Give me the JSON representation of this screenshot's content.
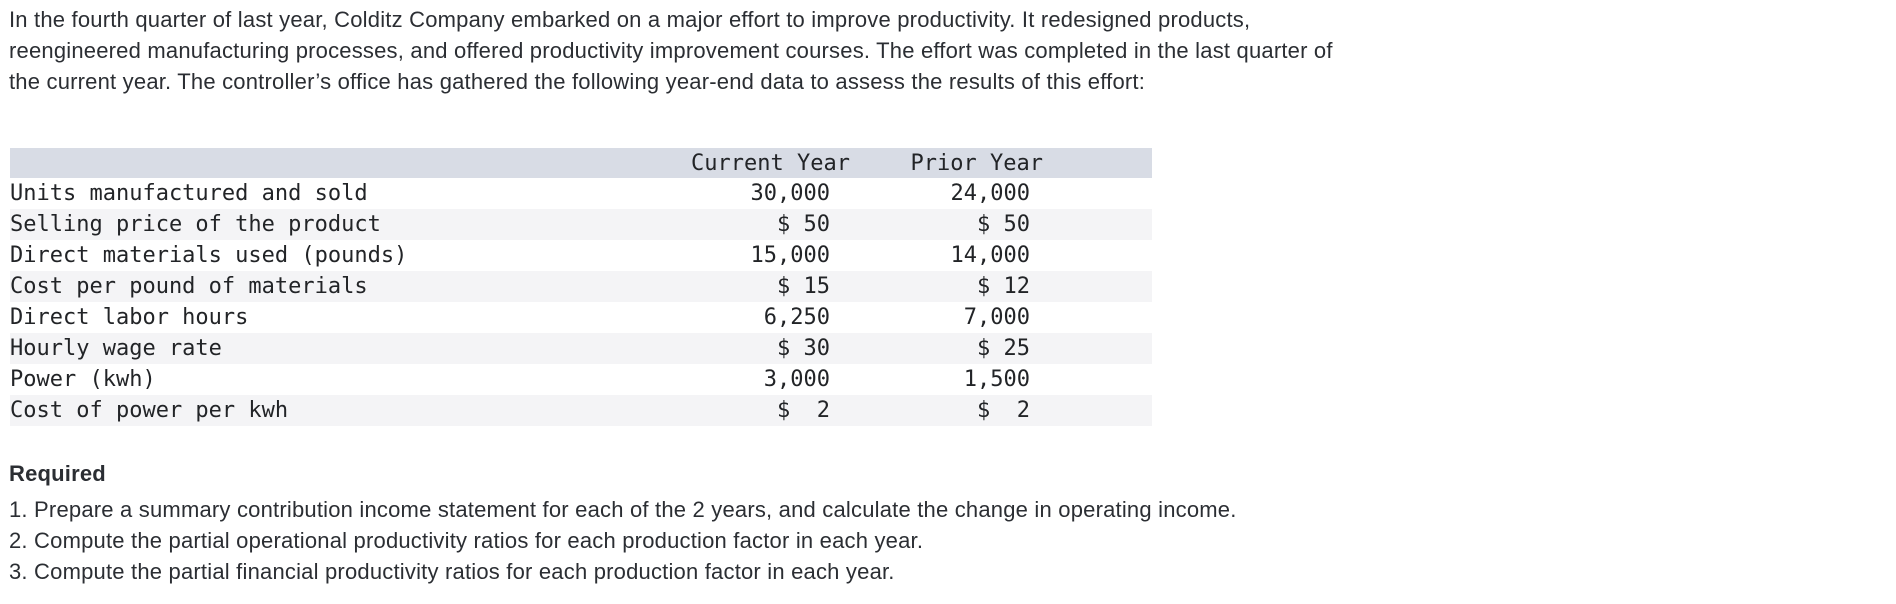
{
  "intro": {
    "lines": [
      "In the fourth quarter of last year, Colditz Company embarked on a major effort to improve productivity. It redesigned products,",
      "reengineered manufacturing processes, and offered productivity improvement courses. The effort was completed in the last quarter of",
      "the current year. The controller’s office has gathered the following year-end data to assess the results of this effort:"
    ]
  },
  "table": {
    "headers": {
      "label": "",
      "current": "Current Year",
      "prior": "Prior Year"
    },
    "rows": [
      {
        "label": "Units manufactured and sold",
        "current": "30,000",
        "prior": "24,000"
      },
      {
        "label": "Selling price of the product",
        "current": "$ 50",
        "prior": "$ 50"
      },
      {
        "label": "Direct materials used (pounds)",
        "current": "15,000",
        "prior": "14,000"
      },
      {
        "label": "Cost per pound of materials",
        "current": "$ 15",
        "prior": "$ 12"
      },
      {
        "label": "Direct labor hours",
        "current": "6,250",
        "prior": "7,000"
      },
      {
        "label": "Hourly wage rate",
        "current": "$ 30",
        "prior": "$ 25"
      },
      {
        "label": "Power (kwh)",
        "current": "3,000",
        "prior": "1,500"
      },
      {
        "label": "Cost of power per kwh",
        "current": "$  2",
        "prior": "$  2"
      }
    ]
  },
  "required": {
    "heading": "Required",
    "items": [
      "1. Prepare a summary contribution income statement for each of the 2 years, and calculate the change in operating income.",
      "2. Compute the partial operational productivity ratios for each production factor in each year.",
      "3. Compute the partial financial productivity ratios for each production factor in each year."
    ]
  },
  "colors": {
    "table_header_bg": "#d8dce5",
    "row_stripe_bg": "#f4f4f6",
    "text": "#2b2e33"
  }
}
